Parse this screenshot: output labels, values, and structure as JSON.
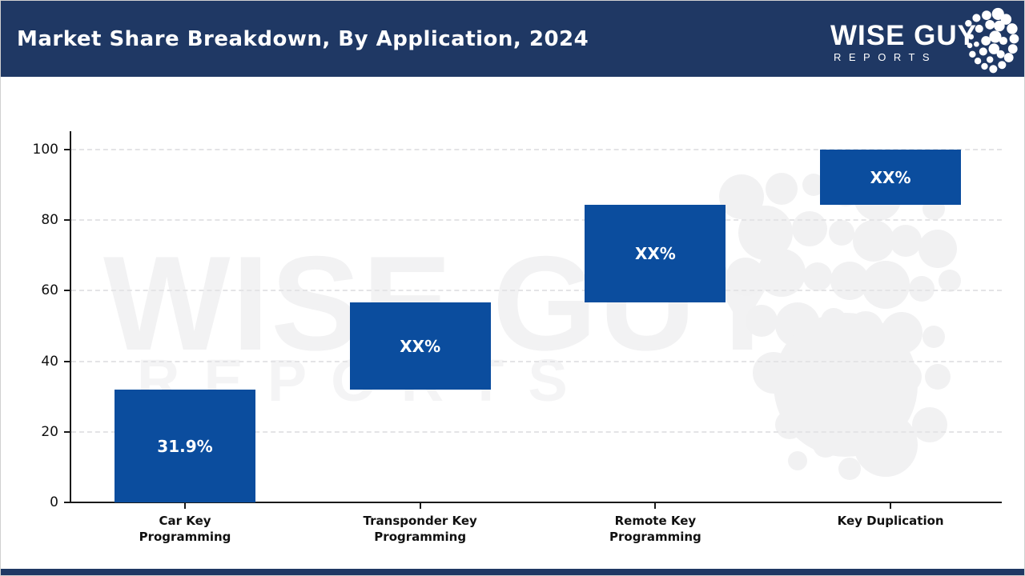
{
  "header": {
    "title": "Market Share Breakdown, By Application, 2024",
    "logo": {
      "line1": "WISE GUY",
      "line2": "REPORTS"
    }
  },
  "watermark": {
    "line1": "WISE GUY",
    "line2": "REPORTS"
  },
  "colors": {
    "header_bg": "#1f3864",
    "bar_blue": "#0b4d9e",
    "bar_label": "#ffffff",
    "gridline": "#e4e4e6",
    "watermark_gray": "#f2f2f3"
  },
  "chart_data": {
    "type": "bar",
    "subtype": "waterfall",
    "title": "Market Share Breakdown, By Application, 2024",
    "xlabel": "",
    "ylabel": "",
    "ylim": [
      0,
      100
    ],
    "yticks": [
      0,
      20,
      40,
      60,
      80,
      100
    ],
    "grid": "horizontal-dashed",
    "legend": "none",
    "categories": [
      {
        "line1": "Car Key",
        "line2": "Programming"
      },
      {
        "line1": "Transponder Key",
        "line2": "Programming"
      },
      {
        "line1": "Remote Key",
        "line2": "Programming"
      },
      {
        "line1": "Key Duplication",
        "line2": ""
      }
    ],
    "series": [
      {
        "name": "Market Share",
        "segments": [
          {
            "category": "Car Key Programming",
            "start": 0,
            "end": 31.9,
            "label": "31.9%"
          },
          {
            "category": "Transponder Key Programming",
            "start": 31.9,
            "end": 56.7,
            "label": "XX%"
          },
          {
            "category": "Remote Key Programming",
            "start": 56.7,
            "end": 84.3,
            "label": "XX%"
          },
          {
            "category": "Key Duplication",
            "start": 84.3,
            "end": 100,
            "label": "XX%"
          }
        ]
      }
    ]
  }
}
